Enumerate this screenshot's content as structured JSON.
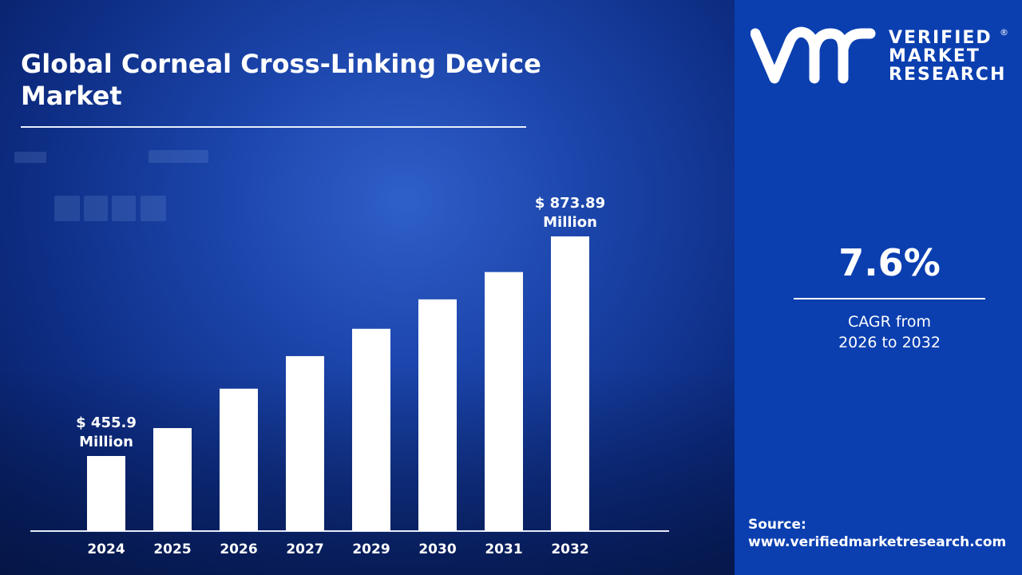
{
  "title": "Global Corneal Cross-Linking Device Market",
  "brand": {
    "name_lines": [
      "VERIFIED",
      "MARKET",
      "RESEARCH"
    ],
    "registered": "®",
    "monogram": "vmr"
  },
  "cagr": {
    "value": "7.6%",
    "label_line1": "CAGR from",
    "label_line2": "2026 to 2032"
  },
  "source": {
    "label": "Source:",
    "url": "www.verifiedmarketresearch.com"
  },
  "colors": {
    "background": "#0c2a7e",
    "panel": "#0b3fb0",
    "bars": "#ffffff"
  },
  "chart_data": {
    "type": "bar",
    "categories": [
      "2024",
      "2025",
      "2026",
      "2027",
      "2029",
      "2030",
      "2031",
      "2032"
    ],
    "values": [
      455.9,
      509,
      584,
      646,
      698,
      754,
      806,
      873.89
    ],
    "unit": "USD Million",
    "annotations": [
      {
        "category": "2024",
        "line1": "$ 455.9",
        "line2": "Million"
      },
      {
        "category": "2032",
        "line1": "$ 873.89",
        "line2": "Million"
      }
    ],
    "grid": false,
    "legend": "none"
  }
}
